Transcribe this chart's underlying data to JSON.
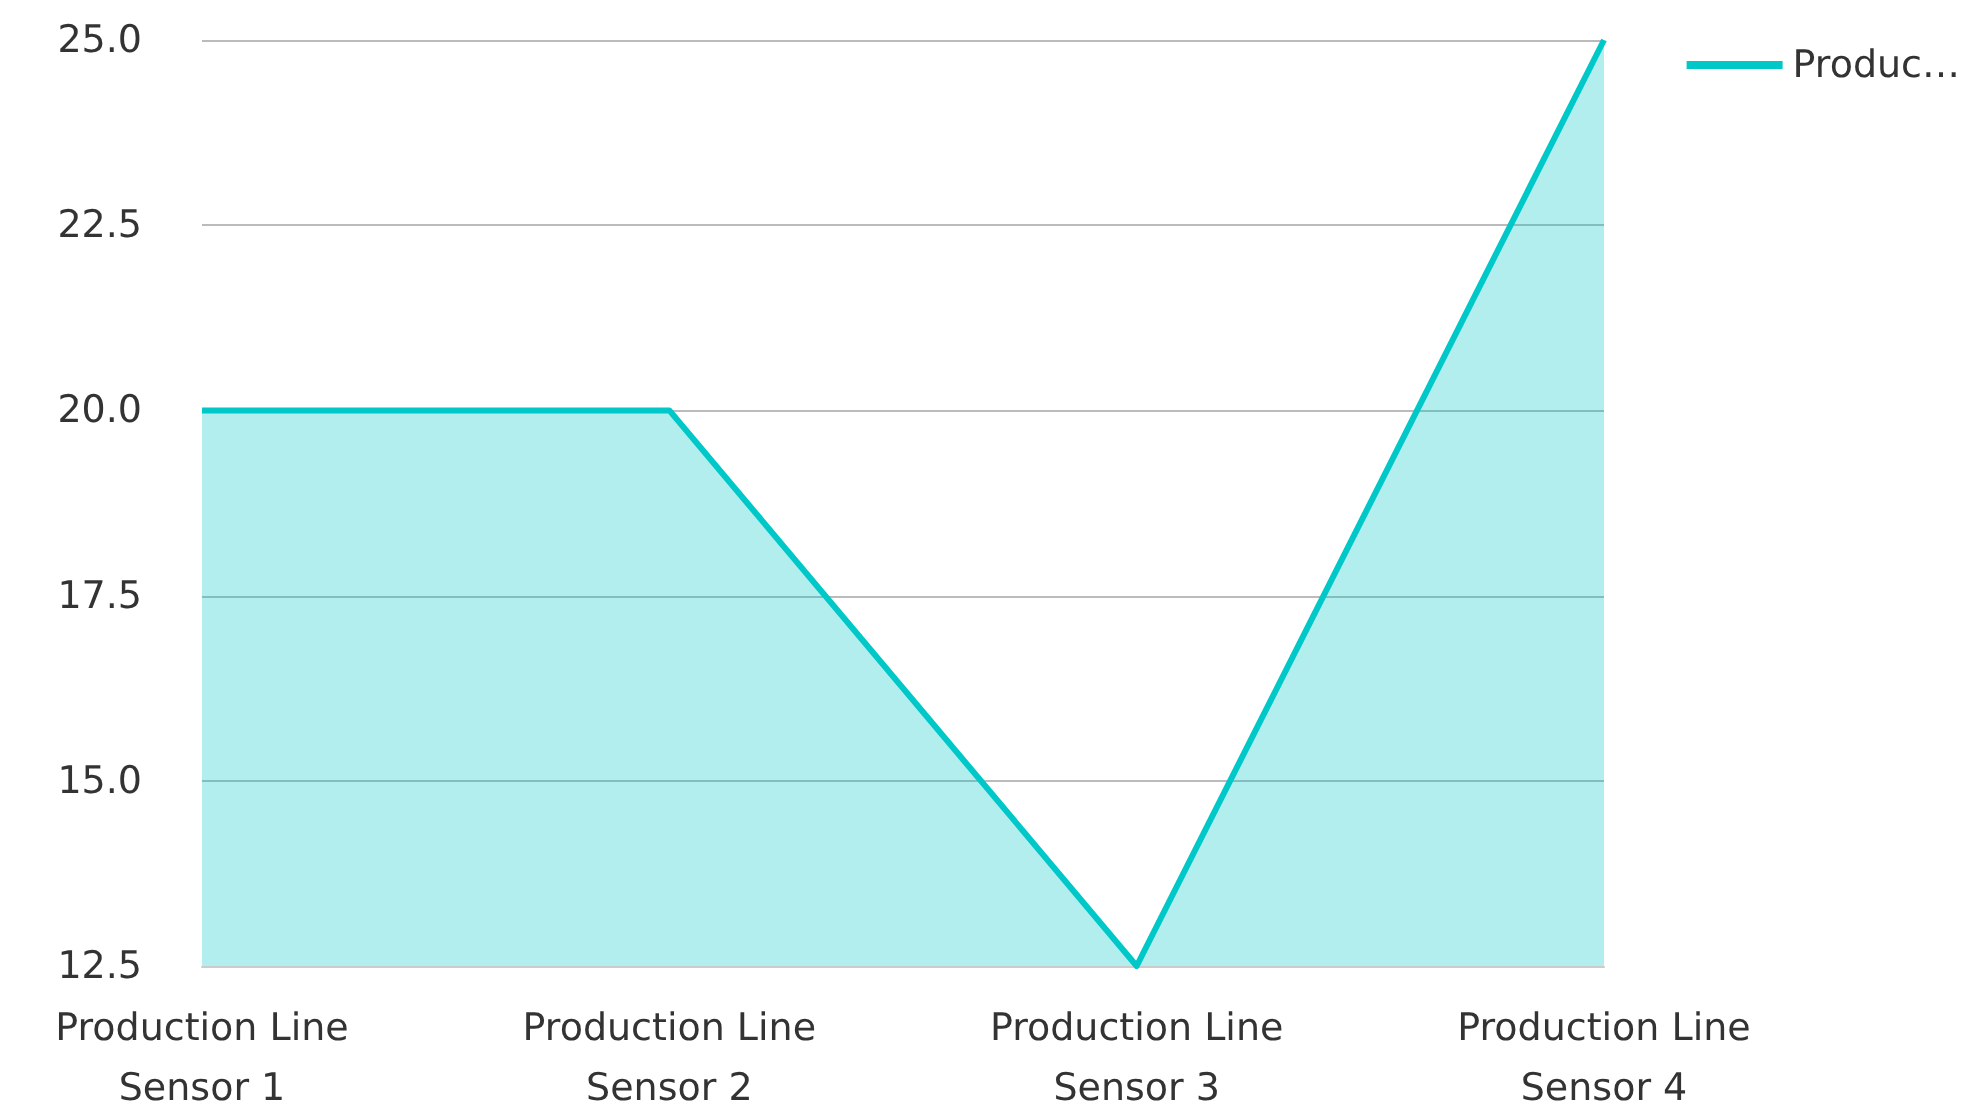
{
  "chart_data": {
    "type": "area",
    "categories": [
      "Production Line\nSensor 1",
      "Production Line\nSensor 2",
      "Production Line\nSensor 3",
      "Production Line\nSensor 4"
    ],
    "series": [
      {
        "name": "Produc…",
        "color": "#00c8c8",
        "values": [
          20,
          20,
          12.5,
          25
        ]
      }
    ],
    "ylim": [
      12.5,
      25
    ],
    "yticks": [
      {
        "value": 12.5,
        "label": "12.5"
      },
      {
        "value": 15,
        "label": "15.0"
      },
      {
        "value": 17.5,
        "label": "17.5"
      },
      {
        "value": 20,
        "label": "20.0"
      },
      {
        "value": 22.5,
        "label": "22.5"
      },
      {
        "value": 25,
        "label": "25.0"
      }
    ],
    "grid": "y",
    "legend": "top right"
  }
}
